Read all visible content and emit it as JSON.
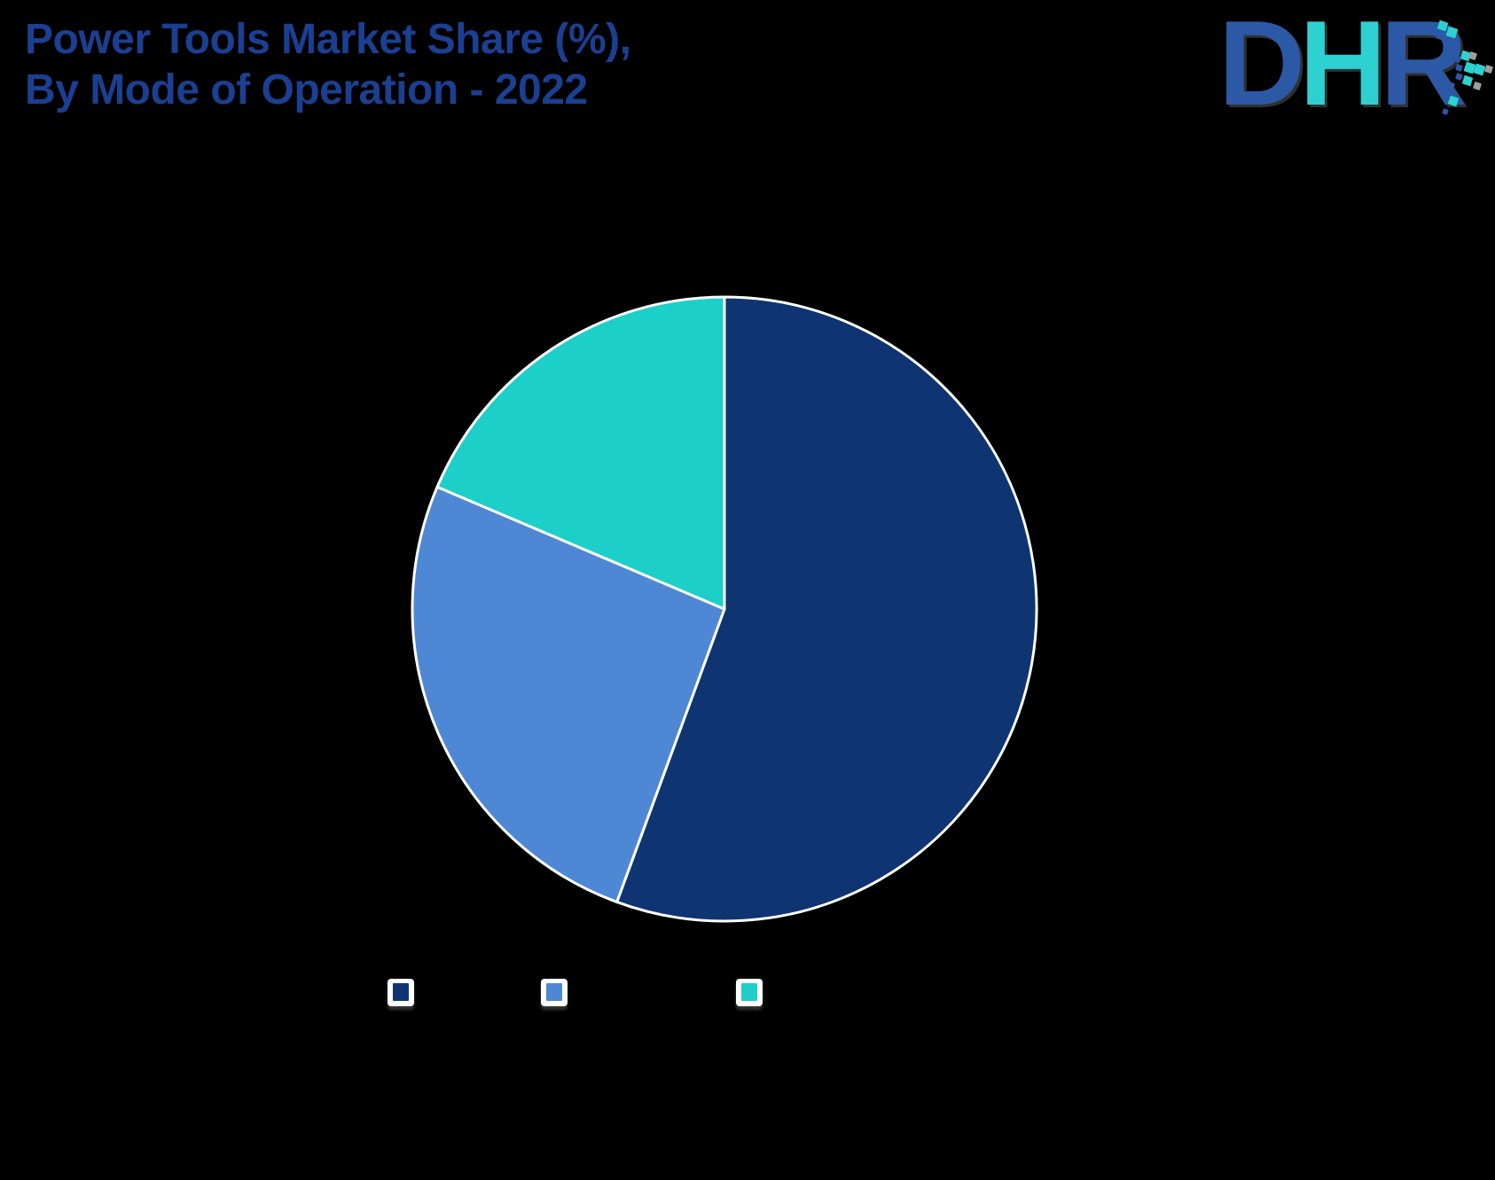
{
  "page": {
    "background": "#000000"
  },
  "header": {
    "title_line1": "Power Tools Market Share (%),",
    "title_line2": "By Mode of Operation - 2022",
    "title_color": "#1B3F91"
  },
  "logo": {
    "letters": [
      {
        "char": "D",
        "color": "#2B59A6"
      },
      {
        "char": "H",
        "color": "#2DD1D1"
      },
      {
        "char": "R",
        "color": "#2B59A6"
      }
    ],
    "dot_colors": {
      "blue": "#2B59A6",
      "teal": "#2DD1D1",
      "gray": "#9E9E9E"
    }
  },
  "chart_data": {
    "type": "pie",
    "title": "Power Tools Market Share (%), By Mode of Operation - 2022",
    "start_angle_deg": 0,
    "direction": "clockwise",
    "slice_border_color": "#FFFFFF",
    "legend_position": "bottom",
    "legend_labels_visible": false,
    "segments": [
      {
        "label": "",
        "value": 55.6,
        "color": "#0E3572"
      },
      {
        "label": "",
        "value": 25.8,
        "color": "#4E88D4"
      },
      {
        "label": "",
        "value": 18.6,
        "color": "#1CCFC9"
      }
    ]
  },
  "legend": {
    "labels_visible": false,
    "items": [
      {
        "label": "",
        "color": "#0E3572"
      },
      {
        "label": "",
        "color": "#4E88D4"
      },
      {
        "label": "",
        "color": "#1CCFC9"
      }
    ]
  }
}
